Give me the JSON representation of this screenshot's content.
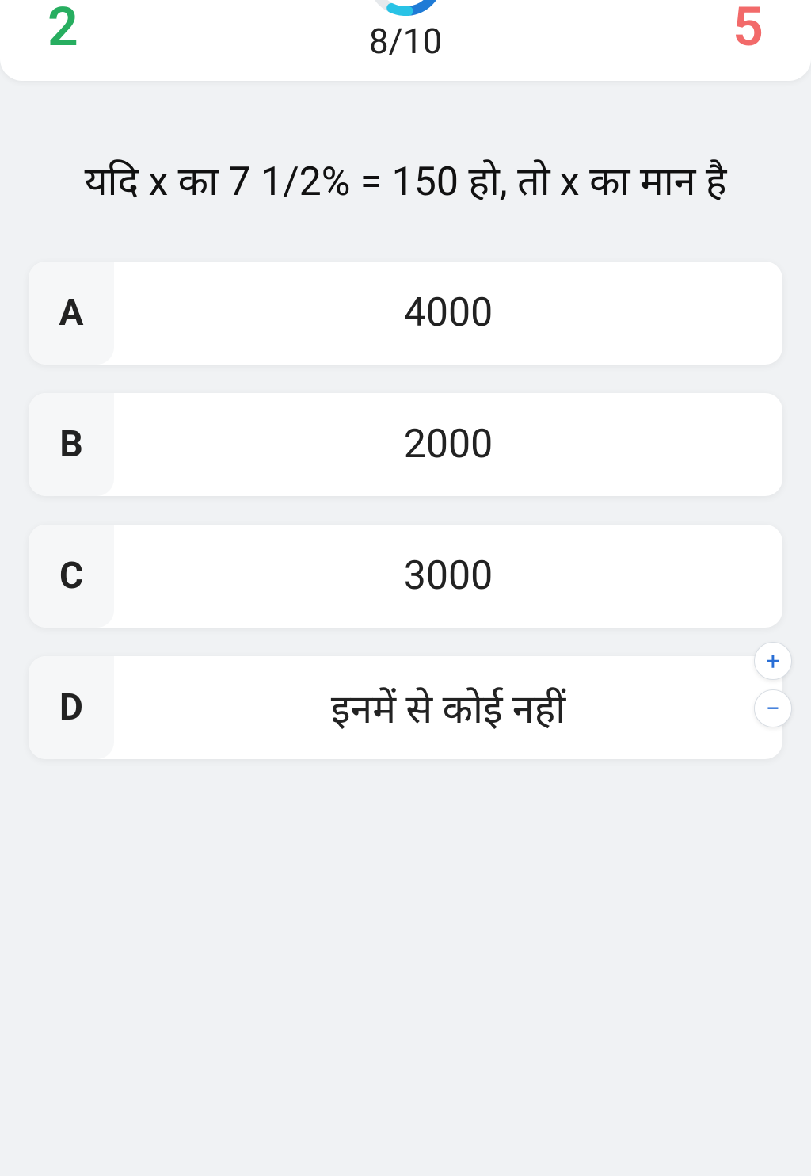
{
  "colors": {
    "background": "#f0f2f4",
    "card_bg": "#ffffff",
    "score_left": "#27ae60",
    "score_right": "#f26a6a",
    "progress_track": "#e6e9ec",
    "progress_blue": "#1f7bd6",
    "progress_cyan": "#29c3e6",
    "text_primary": "#111111",
    "option_letter_bg": "#f6f7f8",
    "float_plus": "#2a6fd6",
    "float_minus": "#2a6fd6"
  },
  "header": {
    "score_left": "2",
    "score_right": "5",
    "progress_label": "8/10",
    "progress_current": 8,
    "progress_total": 10
  },
  "question": {
    "text": "यदि x का 7 1/2% = 150 हो, तो x का मान है"
  },
  "options": [
    {
      "letter": "A",
      "text": "4000"
    },
    {
      "letter": "B",
      "text": "2000"
    },
    {
      "letter": "C",
      "text": "3000"
    },
    {
      "letter": "D",
      "text": "इनमें से कोई नहीं"
    }
  ],
  "float_controls": {
    "plus": "+",
    "minus": "−"
  }
}
